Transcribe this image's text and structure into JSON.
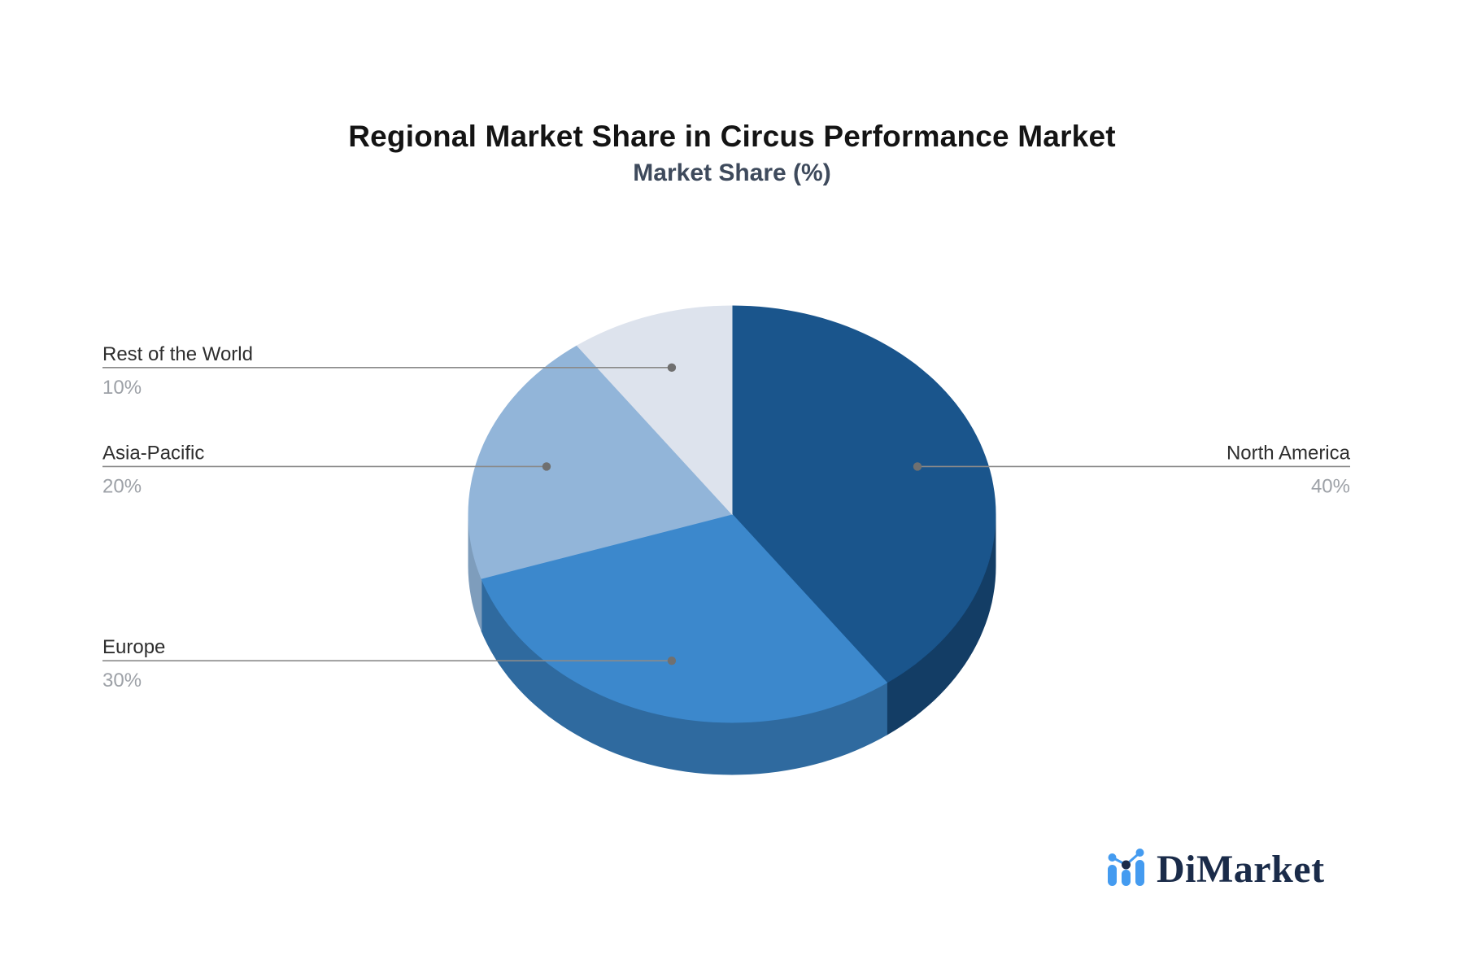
{
  "title": "Regional Market Share in Circus Performance Market",
  "subtitle": "Market Share (%)",
  "logo": {
    "text": "DiMarket",
    "icon": "bar-chart-trend-icon"
  },
  "colors": {
    "background": "#ffffff",
    "title": "#141414",
    "subtitle": "#3e4a5c",
    "label_name": "#2e2e2e",
    "label_value": "#9da1a7",
    "leader_line": "#8a8a8a",
    "leader_dot": "#707070",
    "logo_blue": "#449bf0",
    "logo_navy": "#1a2b49"
  },
  "chart_data": {
    "type": "pie",
    "title": "Regional Market Share in Circus Performance Market",
    "subtitle": "Market Share (%)",
    "unit": "%",
    "effect_3d": true,
    "start_angle_deg": 0,
    "direction": "clockwise",
    "legend_position": "none",
    "slices": [
      {
        "label": "North America",
        "value": 40,
        "display": "40%",
        "color": "#1a558c",
        "side_color": "#133d65"
      },
      {
        "label": "Europe",
        "value": 30,
        "display": "30%",
        "color": "#3c88cc",
        "side_color": "#2f6a9f"
      },
      {
        "label": "Asia-Pacific",
        "value": 20,
        "display": "20%",
        "color": "#92b5d9",
        "side_color": "#7e9dbc"
      },
      {
        "label": "Rest of the World",
        "value": 10,
        "display": "10%",
        "color": "#dde3ed",
        "side_color": "#c4cddc"
      }
    ]
  }
}
